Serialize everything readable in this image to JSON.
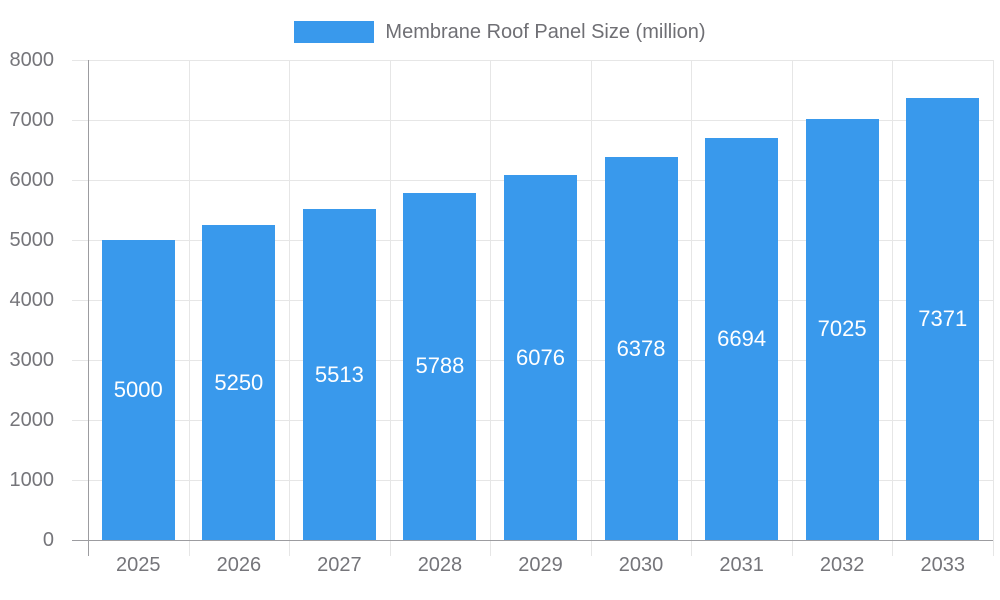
{
  "legend": {
    "label": "Membrane Roof Panel Size (million)",
    "position": "top"
  },
  "chart_data": {
    "type": "bar",
    "title": "",
    "xlabel": "",
    "ylabel": "",
    "categories": [
      "2025",
      "2026",
      "2027",
      "2028",
      "2029",
      "2030",
      "2031",
      "2032",
      "2033"
    ],
    "series": [
      {
        "name": "Membrane Roof Panel Size (million)",
        "values": [
          5000,
          5250,
          5513,
          5788,
          6076,
          6378,
          6694,
          7025,
          7371
        ]
      }
    ],
    "value_labels_shown": true,
    "ylim": [
      0,
      8000
    ],
    "ytick_step": 1000,
    "yticks": [
      0,
      1000,
      2000,
      3000,
      4000,
      5000,
      6000,
      7000,
      8000
    ],
    "grid": true,
    "legend_position": "top"
  },
  "colors": {
    "bar": "#3999EC",
    "grid": "#e6e6e6",
    "axis": "#9c9ca0",
    "tick_label": "#75757a",
    "legend_label": "#6f6f74",
    "value_label": "#ffffff",
    "background": "#ffffff"
  }
}
